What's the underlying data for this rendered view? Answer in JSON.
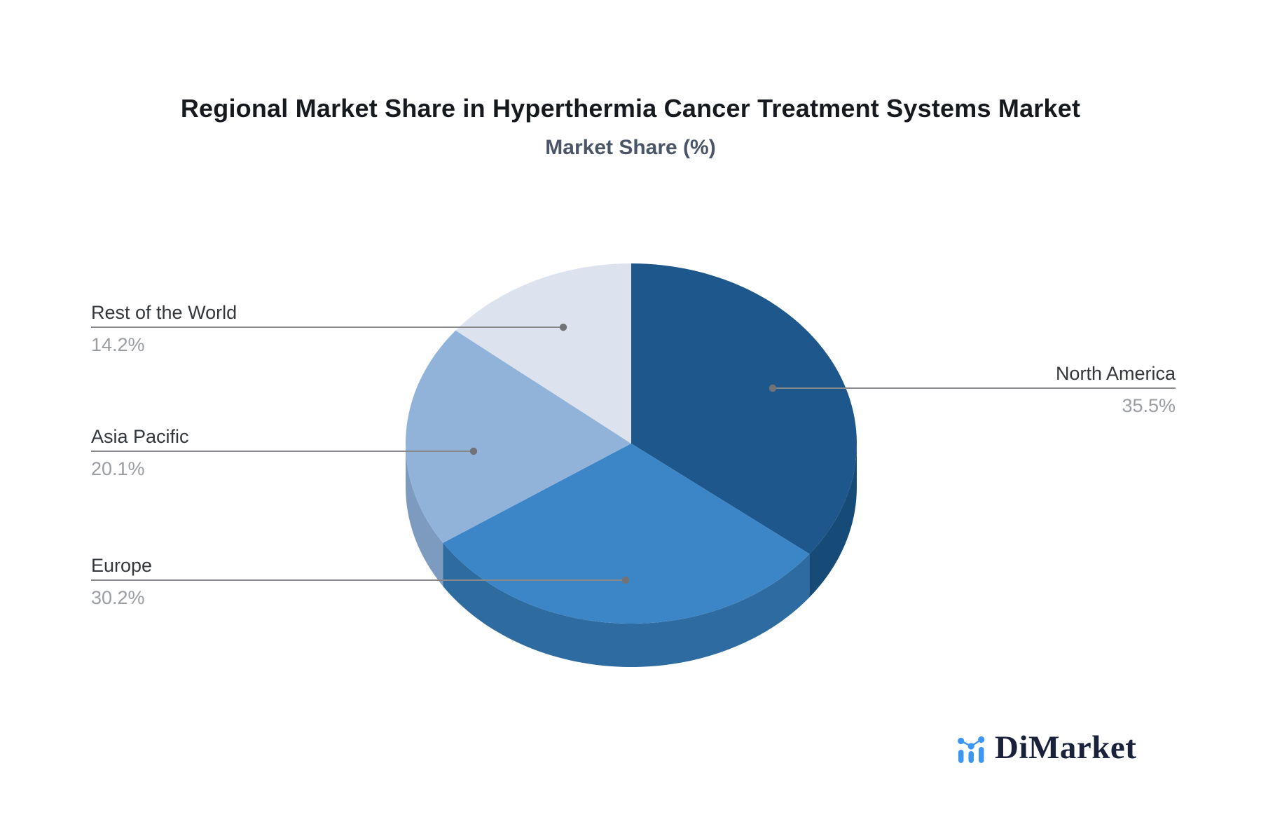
{
  "title": "Regional Market Share in Hyperthermia Cancer Treatment Systems Market",
  "subtitle": "Market Share (%)",
  "logo": {
    "text": "DiMarket",
    "icon": "bar-chart-icon",
    "icon_color": "#3d96f2",
    "text_color": "#19223a"
  },
  "chart_data": {
    "type": "pie",
    "style": "3d",
    "title": "Regional Market Share in Hyperthermia Cancer Treatment Systems Market",
    "subtitle": "Market Share (%)",
    "unit": "%",
    "start_angle_deg": 0,
    "direction": "clockwise",
    "legend_position": "leader-lines",
    "slices": [
      {
        "label": "North America",
        "value": 35.5,
        "display": "35.5%",
        "color": "#1d578c",
        "side_color": "#164b77"
      },
      {
        "label": "Europe",
        "value": 30.2,
        "display": "30.2%",
        "color": "#3c86c8",
        "side_color": "#2e6ba0"
      },
      {
        "label": "Asia Pacific",
        "value": 20.1,
        "display": "20.1%",
        "color": "#91b3da",
        "side_color": "#7d9bbf"
      },
      {
        "label": "Rest of the World",
        "value": 14.2,
        "display": "14.2%",
        "color": "#dce3ee",
        "side_color": "#c2cbda"
      }
    ],
    "leader_line_color": "#87898c",
    "leader_dot_color": "#717376"
  }
}
